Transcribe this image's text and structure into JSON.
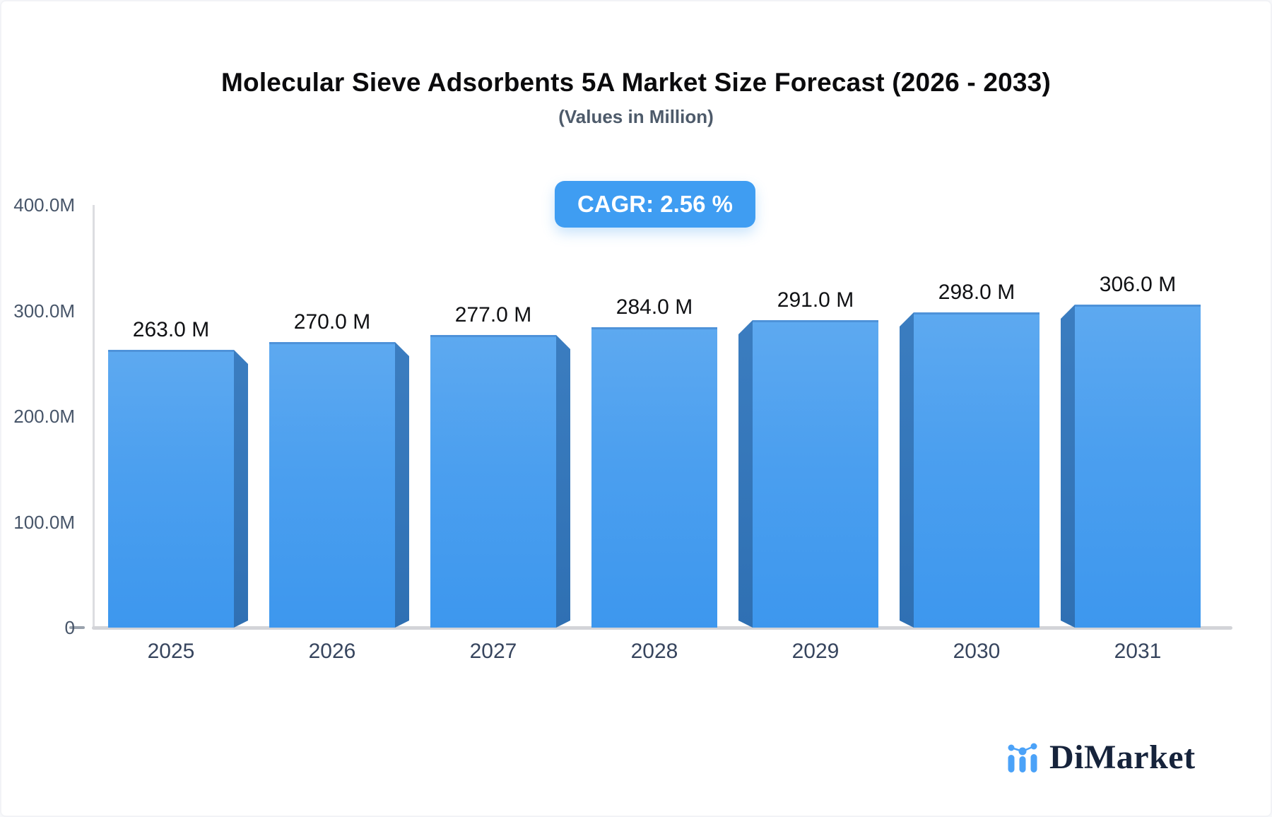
{
  "header": {
    "title": "Molecular Sieve Adsorbents 5A Market Size Forecast (2026 - 2033)",
    "subtitle": "(Values in Million)",
    "cagr_label": "CAGR: 2.56 %"
  },
  "chart_data": {
    "type": "bar",
    "title": "Molecular Sieve Adsorbents 5A Market Size Forecast (2026 - 2033)",
    "subtitle": "(Values in Million)",
    "unit": "Million",
    "cagr_percent": 2.56,
    "categories": [
      "2025",
      "2026",
      "2027",
      "2028",
      "2029",
      "2030",
      "2031"
    ],
    "values": [
      263.0,
      270.0,
      277.0,
      284.0,
      291.0,
      298.0,
      306.0
    ],
    "bar_labels": [
      "263.0 M",
      "270.0 M",
      "277.0 M",
      "284.0 M",
      "291.0 M",
      "298.0 M",
      "306.0 M"
    ],
    "y_ticks": [
      {
        "value": 400,
        "label": "400.0M"
      },
      {
        "value": 300,
        "label": "300.0M"
      },
      {
        "value": 200,
        "label": "200.0M"
      },
      {
        "value": 100,
        "label": "100.0M"
      },
      {
        "value": 0,
        "label": "0"
      }
    ],
    "ylim": [
      0,
      400
    ],
    "grid": false,
    "legend": false,
    "bar_color_top": "#5DA9F0",
    "bar_color_bottom": "#3D97EE",
    "bar_side_color": "#2F70B3"
  },
  "branding": {
    "logo_text": "DiMarket",
    "logo_icon": "mini-bar-chart-icon",
    "logo_text_color": "#16233B",
    "logo_icon_color": "#4BA2F8"
  },
  "colors": {
    "badge_bg": "#3F9DF2",
    "badge_text": "#FFFFFF",
    "axis_line": "#D3D4D8",
    "tick_text": "#475569",
    "title_text": "#0B0B0D",
    "subtitle_text": "#4D5A6A",
    "background": "#FFFFFF"
  }
}
